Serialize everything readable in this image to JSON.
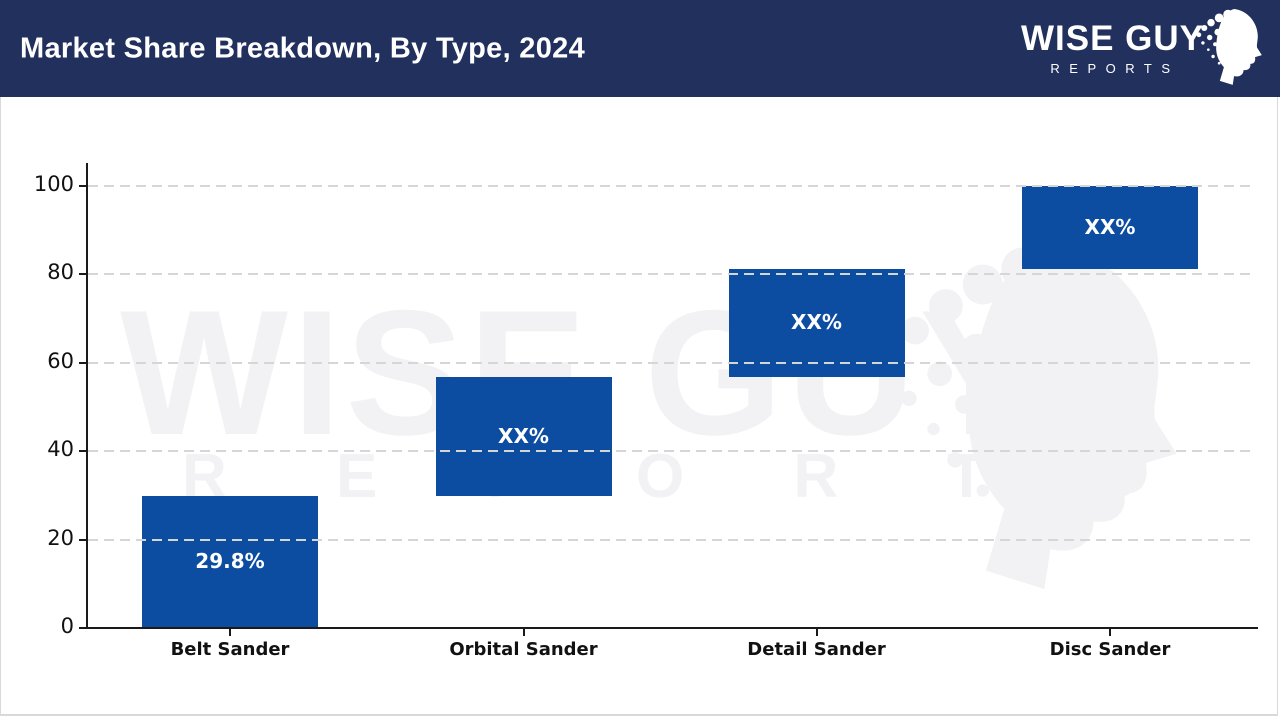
{
  "header": {
    "title": "Market Share Breakdown, By Type, 2024",
    "logo_line1": "WISE GUY",
    "logo_line2": "REPORTS"
  },
  "watermark": {
    "line1": "WISE GUY",
    "line2": "R E P O R T S"
  },
  "colors": {
    "header_bg": "#22305e",
    "bar": "#0c4da2",
    "grid": "#d6d6d6",
    "axis": "#1a1a1a",
    "watermark": "#f2f2f4",
    "bar_label_text": "#ffffff",
    "tick_label_text": "#111111"
  },
  "chart_data": {
    "type": "bar",
    "variant": "waterfall",
    "title": "Market Share Breakdown, By Type, 2024",
    "xlabel": "",
    "ylabel": "",
    "categories": [
      "Belt Sander",
      "Orbital Sander",
      "Detail Sander",
      "Disc Sander"
    ],
    "segments": [
      {
        "category": "Belt Sander",
        "start": 0,
        "end": 29.8,
        "label": "29.8%"
      },
      {
        "category": "Orbital Sander",
        "start": 29.8,
        "end": 56.8,
        "label": "XX%"
      },
      {
        "category": "Detail Sander",
        "start": 56.8,
        "end": 81.2,
        "label": "XX%"
      },
      {
        "category": "Disc Sander",
        "start": 81.2,
        "end": 100,
        "label": "XX%"
      }
    ],
    "y_ticks": [
      0,
      20,
      40,
      60,
      80,
      100
    ],
    "ylim": [
      0,
      105
    ],
    "grid": true,
    "grid_style": "dashed",
    "legend": "none"
  }
}
